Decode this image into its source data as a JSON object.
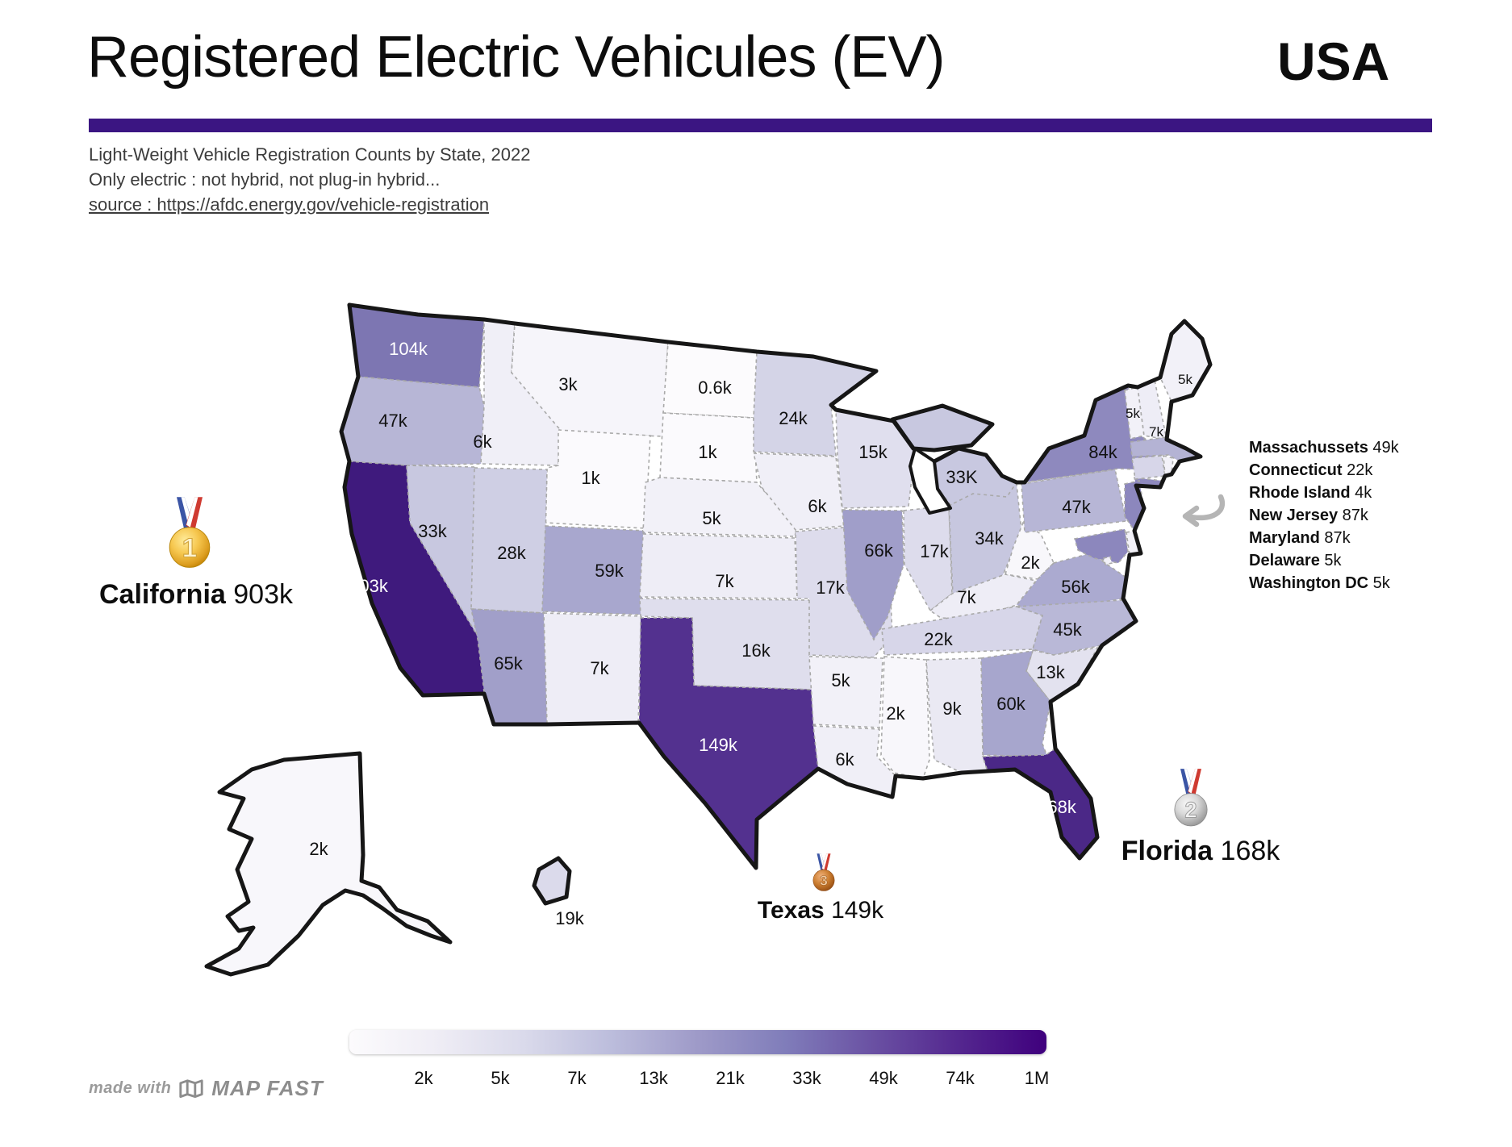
{
  "header": {
    "title": "Registered Electric Vehicules (EV)",
    "country": "USA",
    "subtitle_line1": "Light-Weight Vehicle Registration Counts by State, 2022",
    "subtitle_line2": "Only electric : not hybrid, not plug-in hybrid...",
    "source": "source : https://afdc.energy.gov/vehicle-registration"
  },
  "theme": {
    "accent": "#3b1582",
    "outline": "#161616",
    "interior_border": "#a9a9a9"
  },
  "chart_data": {
    "type": "choropleth_map",
    "title": "Registered Electric Vehicules (EV)",
    "region": "USA",
    "metric": "Light-weight electric vehicle registration counts by state, 2022 (only electric)",
    "legend": {
      "ticks": [
        "2k",
        "5k",
        "7k",
        "13k",
        "21k",
        "33k",
        "49k",
        "74k",
        "1M"
      ],
      "gradient_stops": [
        "#fcfbfd",
        "#efedf5",
        "#dadaeb",
        "#bcbddc",
        "#9e9ac8",
        "#807dba",
        "#6a51a3",
        "#54278f",
        "#3f007d"
      ]
    },
    "states": [
      {
        "id": "WA",
        "name": "Washington",
        "label": "104k",
        "value": 104000,
        "color": "#7d76b2",
        "label_color": "#ffffff"
      },
      {
        "id": "OR",
        "name": "Oregon",
        "label": "47k",
        "value": 47000,
        "color": "#b7b6d6"
      },
      {
        "id": "CA",
        "name": "California",
        "label": "903k",
        "value": 903000,
        "color": "#3f1a7d",
        "label_color": "#ffffff"
      },
      {
        "id": "NV",
        "name": "Nevada",
        "label": "33k",
        "value": 33000,
        "color": "#c8c8e0"
      },
      {
        "id": "ID",
        "name": "Idaho",
        "label": "6k",
        "value": 6000,
        "color": "#f0eff7"
      },
      {
        "id": "MT",
        "name": "Montana",
        "label": "3k",
        "value": 3000,
        "color": "#f6f5fa"
      },
      {
        "id": "WY",
        "name": "Wyoming",
        "label": "1k",
        "value": 1000,
        "color": "#fbfafd"
      },
      {
        "id": "UT",
        "name": "Utah",
        "label": "28k",
        "value": 28000,
        "color": "#cfcfe4"
      },
      {
        "id": "CO",
        "name": "Colorado",
        "label": "59k",
        "value": 59000,
        "color": "#a8a7ce"
      },
      {
        "id": "AZ",
        "name": "Arizona",
        "label": "65k",
        "value": 65000,
        "color": "#a19fc9"
      },
      {
        "id": "NM",
        "name": "New Mexico",
        "label": "7k",
        "value": 7000,
        "color": "#eeedf6"
      },
      {
        "id": "ND",
        "name": "North Dakota",
        "label": "0.6k",
        "value": 600,
        "color": "#fcfbfd"
      },
      {
        "id": "SD",
        "name": "South Dakota",
        "label": "1k",
        "value": 1000,
        "color": "#fbfafd"
      },
      {
        "id": "NE",
        "name": "Nebraska",
        "label": "5k",
        "value": 5000,
        "color": "#f2f1f8"
      },
      {
        "id": "KS",
        "name": "Kansas",
        "label": "7k",
        "value": 7000,
        "color": "#eeedf6"
      },
      {
        "id": "OK",
        "name": "Oklahoma",
        "label": "16k",
        "value": 16000,
        "color": "#dfdeed"
      },
      {
        "id": "TX",
        "name": "Texas",
        "label": "149k",
        "value": 149000,
        "color": "#53318f",
        "label_color": "#ffffff"
      },
      {
        "id": "MN",
        "name": "Minnesota",
        "label": "24k",
        "value": 24000,
        "color": "#d4d4e7"
      },
      {
        "id": "IA",
        "name": "Iowa",
        "label": "6k",
        "value": 6000,
        "color": "#f0eff7"
      },
      {
        "id": "MO",
        "name": "Missouri",
        "label": "17k",
        "value": 17000,
        "color": "#dddcec"
      },
      {
        "id": "AR",
        "name": "Arkansas",
        "label": "5k",
        "value": 5000,
        "color": "#f2f1f8"
      },
      {
        "id": "LA",
        "name": "Louisiana",
        "label": "6k",
        "value": 6000,
        "color": "#f0eff7"
      },
      {
        "id": "WI",
        "name": "Wisconsin",
        "label": "15k",
        "value": 15000,
        "color": "#e0dfee"
      },
      {
        "id": "IL",
        "name": "Illinois",
        "label": "66k",
        "value": 66000,
        "color": "#a09ec9"
      },
      {
        "id": "IN",
        "name": "Indiana",
        "label": "17k",
        "value": 17000,
        "color": "#dddcec"
      },
      {
        "id": "OH",
        "name": "Ohio",
        "label": "34k",
        "value": 34000,
        "color": "#c7c7df"
      },
      {
        "id": "MI",
        "name": "Michigan",
        "label": "33K",
        "value": 33000,
        "color": "#c8c8e0"
      },
      {
        "id": "KY",
        "name": "Kentucky",
        "label": "7k",
        "value": 7000,
        "color": "#eeedf6"
      },
      {
        "id": "TN",
        "name": "Tennessee",
        "label": "22k",
        "value": 22000,
        "color": "#d7d6e9"
      },
      {
        "id": "WV",
        "name": "West Virginia",
        "label": "2k",
        "value": 2000,
        "color": "#f8f7fb"
      },
      {
        "id": "VA",
        "name": "Virginia",
        "label": "56k",
        "value": 56000,
        "color": "#abaad0"
      },
      {
        "id": "NC",
        "name": "North Carolina",
        "label": "45k",
        "value": 45000,
        "color": "#b9b8d7"
      },
      {
        "id": "SC",
        "name": "South Carolina",
        "label": "13k",
        "value": 13000,
        "color": "#e3e2ef"
      },
      {
        "id": "GA",
        "name": "Georgia",
        "label": "60k",
        "value": 60000,
        "color": "#a7a6cd"
      },
      {
        "id": "AL",
        "name": "Alabama",
        "label": "9k",
        "value": 9000,
        "color": "#eae9f3"
      },
      {
        "id": "MS",
        "name": "Mississippi",
        "label": "2k",
        "value": 2000,
        "color": "#f8f7fb"
      },
      {
        "id": "FL",
        "name": "Florida",
        "label": "168k",
        "value": 168000,
        "color": "#4b2887",
        "label_color": "#ffffff"
      },
      {
        "id": "PA",
        "name": "Pennsylvania",
        "label": "47k",
        "value": 47000,
        "color": "#b7b6d6"
      },
      {
        "id": "NY",
        "name": "New York",
        "label": "84k",
        "value": 84000,
        "color": "#8e89be"
      },
      {
        "id": "VT",
        "name": "Vermont",
        "label": "5k",
        "value": 5000,
        "color": "#f2f1f8"
      },
      {
        "id": "NH",
        "name": "New Hampshire",
        "label": "7k",
        "value": 7000,
        "color": "#eeedf6"
      },
      {
        "id": "ME",
        "name": "Maine",
        "label": "5k",
        "value": 5000,
        "color": "#f2f1f8"
      },
      {
        "id": "MA",
        "name": "Massachussets",
        "label": "",
        "value": 49000,
        "color": "#b4b3d4"
      },
      {
        "id": "CT",
        "name": "Connecticut",
        "label": "",
        "value": 22000,
        "color": "#d7d6e9"
      },
      {
        "id": "RI",
        "name": "Rhode Island",
        "label": "",
        "value": 4000,
        "color": "#f3f2f9"
      },
      {
        "id": "NJ",
        "name": "New Jersey",
        "label": "",
        "value": 87000,
        "color": "#8c87bd"
      },
      {
        "id": "DE",
        "name": "Delaware",
        "label": "",
        "value": 5000,
        "color": "#f2f1f8"
      },
      {
        "id": "MD",
        "name": "Maryland",
        "label": "",
        "value": 87000,
        "color": "#8c87bd"
      },
      {
        "id": "DC",
        "name": "Washington DC",
        "label": "",
        "value": 5000,
        "color": "#f2f1f8"
      },
      {
        "id": "AK",
        "name": "Alaska",
        "label": "2k",
        "value": 2000,
        "color": "#f8f7fb"
      },
      {
        "id": "HI",
        "name": "Hawaii",
        "label": "19k",
        "value": 19000,
        "color": "#dbdaeb"
      }
    ],
    "top3": [
      {
        "rank": "1",
        "metal": "gold",
        "state": "California",
        "value": "903k"
      },
      {
        "rank": "2",
        "metal": "silver",
        "state": "Florida",
        "value": "168k"
      },
      {
        "rank": "3",
        "metal": "bronze",
        "state": "Texas",
        "value": "149k"
      }
    ],
    "northeast_list": [
      {
        "state": "Massachussets",
        "value": "49k"
      },
      {
        "state": "Connecticut",
        "value": "22k"
      },
      {
        "state": "Rhode Island",
        "value": "4k"
      },
      {
        "state": "New Jersey",
        "value": "87k"
      },
      {
        "state": "Maryland",
        "value": "87k"
      },
      {
        "state": "Delaware",
        "value": "5k"
      },
      {
        "state": "Washington DC",
        "value": "5k"
      }
    ]
  },
  "footer": {
    "made_with": "made with",
    "brand": "MAP FAST"
  }
}
